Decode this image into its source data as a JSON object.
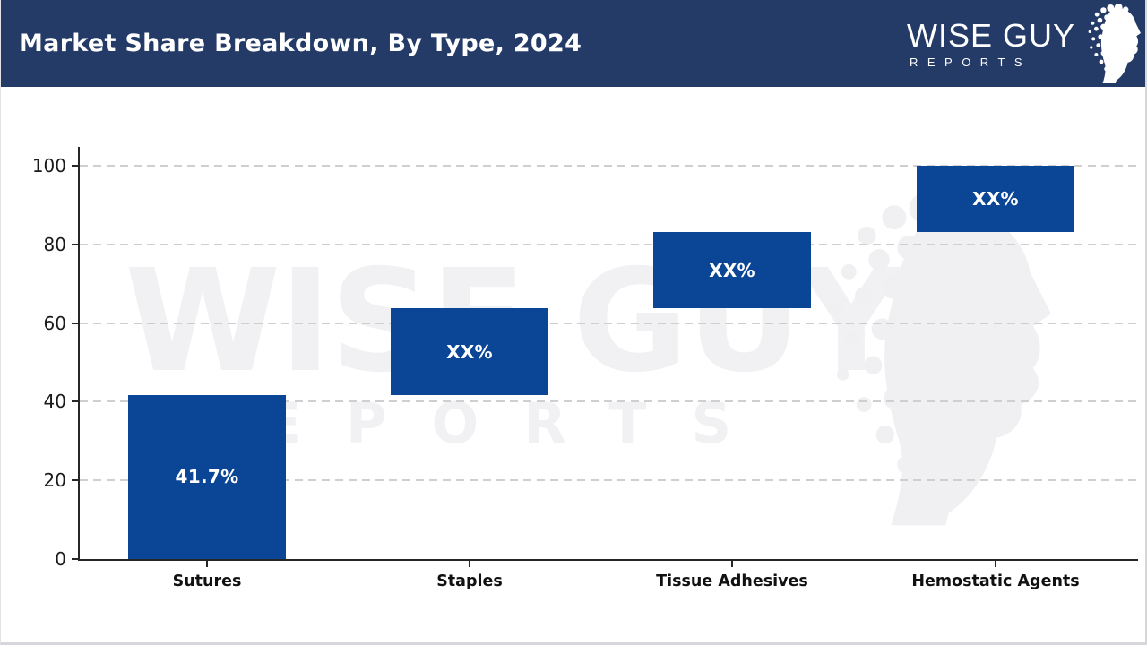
{
  "header": {
    "title": "Market Share Breakdown, By Type, 2024",
    "logo": {
      "wordmark": "WISE GUY",
      "subtext": "REPORTS",
      "icon": "dotted-face-profile"
    },
    "bg_color": "#243A67"
  },
  "watermark": {
    "line1": "WISE GUY",
    "line2": "REPORTS",
    "icon": "dotted-face-profile",
    "color": "#f1f1f3"
  },
  "chart_data": {
    "type": "bar",
    "subtype": "waterfall",
    "title": "Market Share Breakdown, By Type, 2024",
    "categories": [
      "Sutures",
      "Staples",
      "Tissue Adhesives",
      "Hemostatic Agents"
    ],
    "segments": [
      {
        "category": "Sutures",
        "start": 0,
        "end": 41.7,
        "label": "41.7%"
      },
      {
        "category": "Staples",
        "start": 41.7,
        "end": 63.7,
        "label": "XX%"
      },
      {
        "category": "Tissue Adhesives",
        "start": 63.7,
        "end": 83.1,
        "label": "XX%"
      },
      {
        "category": "Hemostatic Agents",
        "start": 83.1,
        "end": 100,
        "label": "XX%"
      }
    ],
    "xlabel": "",
    "ylabel": "",
    "yticks": [
      0,
      20,
      40,
      60,
      80,
      100
    ],
    "ylim": [
      0,
      105
    ],
    "grid": "horizontal-dashed",
    "legend": "none",
    "bar_color": "#0B4596",
    "bar_label_color": "#FFFFFF",
    "axis_color": "#262626",
    "gridline_color": "#cfcfcf"
  }
}
